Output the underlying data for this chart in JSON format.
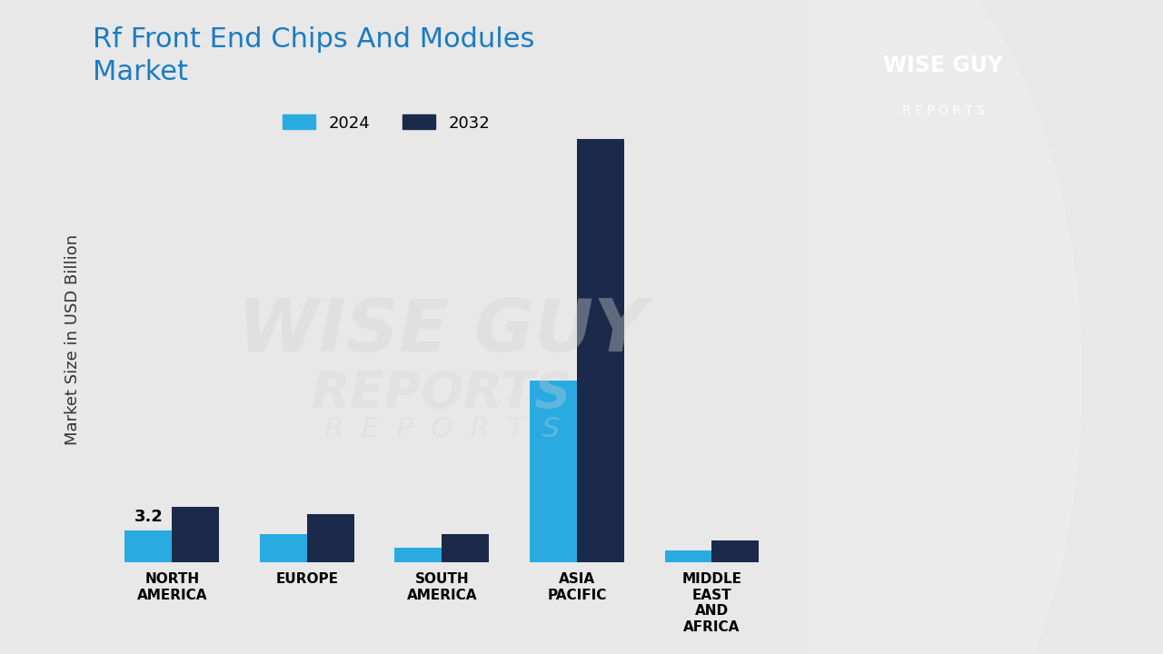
{
  "title": "Rf Front End Chips And Modules\nMarket",
  "ylabel": "Market Size in USD Billion",
  "categories": [
    "NORTH\nAMERICA",
    "EUROPE",
    "SOUTH\nAMERICA",
    "ASIA\nPACIFIC",
    "MIDDLE\nEAST\nAND\nAFRICA"
  ],
  "values_2024": [
    3.2,
    2.8,
    1.5,
    18.0,
    1.2
  ],
  "values_2032": [
    5.5,
    4.8,
    2.8,
    42.0,
    2.2
  ],
  "color_2024": "#29ABE2",
  "color_2032": "#1B2A4A",
  "annotation_text": "3.2",
  "annotation_index": 0,
  "bg_color": "#E8E8E8",
  "right_panel_color": "#1B3A6B",
  "title_color": "#1B7BC4",
  "ylabel_color": "#333333",
  "bar_width": 0.35,
  "legend_2024": "2024",
  "legend_2032": "2032",
  "watermark_line1": "WISE GUY",
  "watermark_line2": "REPORTS",
  "bottom_bar_color": "#1A6B82"
}
